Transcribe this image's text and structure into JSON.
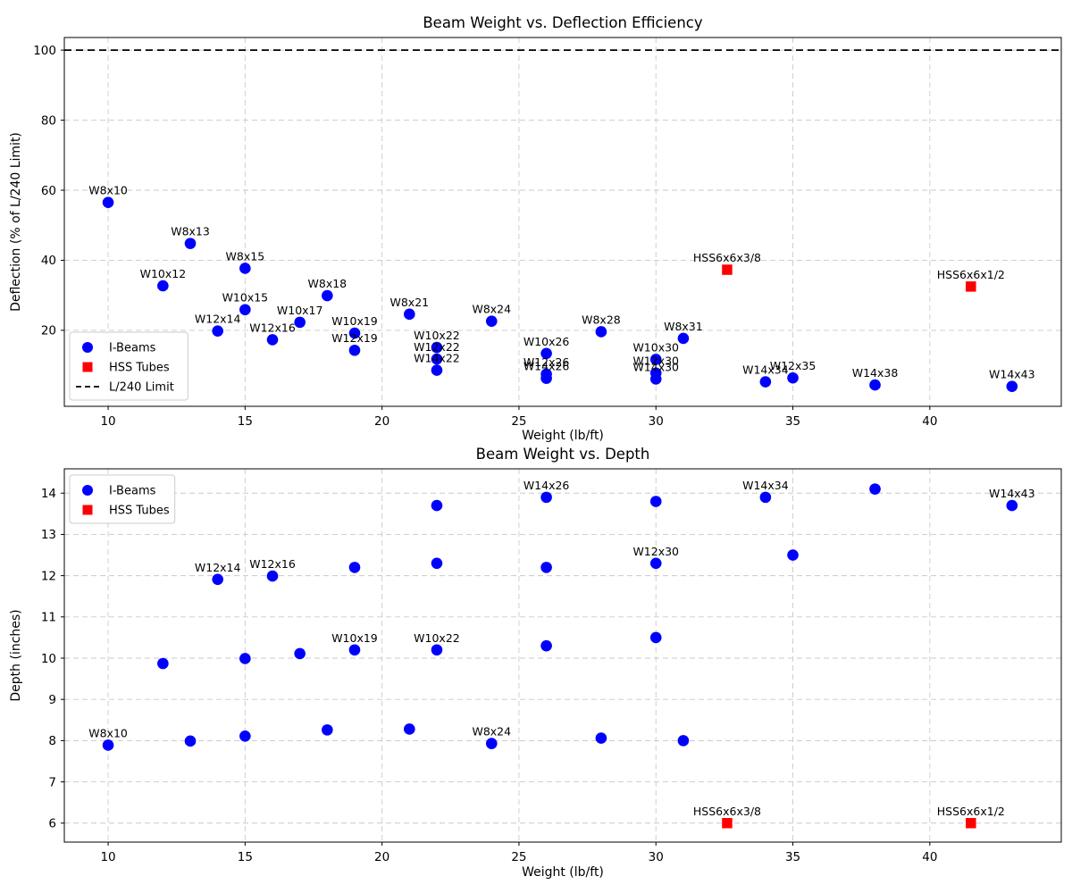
{
  "chart_data": [
    {
      "type": "scatter",
      "title": "Beam Weight vs. Deflection Efficiency",
      "xlabel": "Weight (lb/ft)",
      "ylabel": "Deflection (% of L/240 Limit)",
      "xlim": [
        8.4,
        44.8
      ],
      "ylim": [
        -1.7,
        103.6
      ],
      "xticks": [
        10,
        15,
        20,
        25,
        30,
        35,
        40
      ],
      "yticks": [
        20,
        40,
        60,
        80,
        100
      ],
      "grid": true,
      "hline": {
        "y": 100,
        "label": "L/240 Limit",
        "color": "#000000"
      },
      "legend": {
        "position": "lower-left",
        "items": [
          {
            "label": "I-Beams",
            "marker": "circle",
            "color": "#0000ff"
          },
          {
            "label": "HSS Tubes",
            "marker": "square",
            "color": "#ff0000"
          },
          {
            "label": "L/240 Limit",
            "marker": "dashed-line",
            "color": "#000000"
          }
        ]
      },
      "series": [
        {
          "name": "I-Beams",
          "marker": "circle",
          "color": "#0000ff",
          "points": [
            {
              "label": "W8x10",
              "x": 10,
              "y": 56.5,
              "show_label": true
            },
            {
              "label": "W10x12",
              "x": 12,
              "y": 32.7,
              "show_label": true
            },
            {
              "label": "W8x13",
              "x": 13,
              "y": 44.8,
              "show_label": true
            },
            {
              "label": "W12x14",
              "x": 14,
              "y": 19.8,
              "show_label": true
            },
            {
              "label": "W8x15",
              "x": 15,
              "y": 37.7,
              "show_label": true
            },
            {
              "label": "W10x15",
              "x": 15,
              "y": 25.9,
              "show_label": true
            },
            {
              "label": "W12x16",
              "x": 16,
              "y": 17.3,
              "show_label": true
            },
            {
              "label": "W10x17",
              "x": 17,
              "y": 22.3,
              "show_label": true
            },
            {
              "label": "W8x18",
              "x": 18,
              "y": 29.9,
              "show_label": true
            },
            {
              "label": "W10x19",
              "x": 19,
              "y": 19.2,
              "show_label": true
            },
            {
              "label": "W12x19",
              "x": 19,
              "y": 14.3,
              "show_label": true
            },
            {
              "label": "W8x21",
              "x": 21,
              "y": 24.6,
              "show_label": true
            },
            {
              "label": "W10x22",
              "x": 22,
              "y": 15.1,
              "show_label": true
            },
            {
              "label": "W12x22",
              "x": 22,
              "y": 11.8,
              "show_label": true
            },
            {
              "label": "W14x22",
              "x": 22,
              "y": 8.6,
              "show_label": true
            },
            {
              "label": "W8x24",
              "x": 24,
              "y": 22.6,
              "show_label": true
            },
            {
              "label": "W10x26",
              "x": 26,
              "y": 13.4,
              "show_label": true
            },
            {
              "label": "W12x26",
              "x": 26,
              "y": 7.5,
              "show_label": true
            },
            {
              "label": "W14x26",
              "x": 26,
              "y": 6.3,
              "show_label": true
            },
            {
              "label": "W8x28",
              "x": 28,
              "y": 19.6,
              "show_label": true
            },
            {
              "label": "W10x30",
              "x": 30,
              "y": 11.7,
              "show_label": true
            },
            {
              "label": "W12x30",
              "x": 30,
              "y": 7.8,
              "show_label": true
            },
            {
              "label": "W14x30",
              "x": 30,
              "y": 6.1,
              "show_label": true
            },
            {
              "label": "W8x31",
              "x": 31,
              "y": 17.7,
              "show_label": true
            },
            {
              "label": "W14x34",
              "x": 34,
              "y": 5.3,
              "show_label": true
            },
            {
              "label": "W12x35",
              "x": 35,
              "y": 6.4,
              "show_label": true
            },
            {
              "label": "W14x38",
              "x": 38,
              "y": 4.4,
              "show_label": true
            },
            {
              "label": "W14x43",
              "x": 43,
              "y": 4.0,
              "show_label": true
            }
          ]
        },
        {
          "name": "HSS Tubes",
          "marker": "square",
          "color": "#ff0000",
          "points": [
            {
              "label": "HSS6x6x3/8",
              "x": 32.6,
              "y": 37.3,
              "show_label": true
            },
            {
              "label": "HSS6x6x1/2",
              "x": 41.5,
              "y": 32.5,
              "show_label": true
            }
          ]
        }
      ]
    },
    {
      "type": "scatter",
      "title": "Beam Weight vs. Depth",
      "xlabel": "Weight (lb/ft)",
      "ylabel": "Depth (inches)",
      "xlim": [
        8.4,
        44.8
      ],
      "ylim": [
        5.54,
        14.59
      ],
      "xticks": [
        10,
        15,
        20,
        25,
        30,
        35,
        40
      ],
      "yticks": [
        6,
        7,
        8,
        9,
        10,
        11,
        12,
        13,
        14
      ],
      "grid": true,
      "legend": {
        "position": "upper-left",
        "items": [
          {
            "label": "I-Beams",
            "marker": "circle",
            "color": "#0000ff"
          },
          {
            "label": "HSS Tubes",
            "marker": "square",
            "color": "#ff0000"
          }
        ]
      },
      "series": [
        {
          "name": "I-Beams",
          "marker": "circle",
          "color": "#0000ff",
          "points": [
            {
              "label": "W8x10",
              "x": 10,
              "y": 7.89,
              "show_label": true
            },
            {
              "label": "W10x12",
              "x": 12,
              "y": 9.87,
              "show_label": false
            },
            {
              "label": "W8x13",
              "x": 13,
              "y": 7.99,
              "show_label": false
            },
            {
              "label": "W12x14",
              "x": 14,
              "y": 11.91,
              "show_label": true
            },
            {
              "label": "W8x15",
              "x": 15,
              "y": 8.11,
              "show_label": false
            },
            {
              "label": "W10x15",
              "x": 15,
              "y": 9.99,
              "show_label": false
            },
            {
              "label": "W12x16",
              "x": 16,
              "y": 11.99,
              "show_label": true
            },
            {
              "label": "W10x17",
              "x": 17,
              "y": 10.11,
              "show_label": false
            },
            {
              "label": "W8x18",
              "x": 18,
              "y": 8.26,
              "show_label": false
            },
            {
              "label": "W10x19",
              "x": 19,
              "y": 10.2,
              "show_label": true
            },
            {
              "label": "W12x19",
              "x": 19,
              "y": 12.2,
              "show_label": false
            },
            {
              "label": "W8x21",
              "x": 21,
              "y": 8.28,
              "show_label": false
            },
            {
              "label": "W10x22",
              "x": 22,
              "y": 10.2,
              "show_label": true
            },
            {
              "label": "W12x22",
              "x": 22,
              "y": 12.3,
              "show_label": false
            },
            {
              "label": "W14x22",
              "x": 22,
              "y": 13.7,
              "show_label": false
            },
            {
              "label": "W8x24",
              "x": 24,
              "y": 7.93,
              "show_label": true
            },
            {
              "label": "W10x26",
              "x": 26,
              "y": 10.3,
              "show_label": false
            },
            {
              "label": "W12x26",
              "x": 26,
              "y": 12.2,
              "show_label": false
            },
            {
              "label": "W14x26",
              "x": 26,
              "y": 13.9,
              "show_label": true
            },
            {
              "label": "W8x28",
              "x": 28,
              "y": 8.06,
              "show_label": false
            },
            {
              "label": "W10x30",
              "x": 30,
              "y": 10.5,
              "show_label": false
            },
            {
              "label": "W12x30",
              "x": 30,
              "y": 12.3,
              "show_label": true
            },
            {
              "label": "W14x30",
              "x": 30,
              "y": 13.8,
              "show_label": false
            },
            {
              "label": "W8x31",
              "x": 31,
              "y": 8.0,
              "show_label": false
            },
            {
              "label": "W14x34",
              "x": 34,
              "y": 13.9,
              "show_label": true
            },
            {
              "label": "W12x35",
              "x": 35,
              "y": 12.5,
              "show_label": false
            },
            {
              "label": "W14x38",
              "x": 38,
              "y": 14.1,
              "show_label": false
            },
            {
              "label": "W14x43",
              "x": 43,
              "y": 13.7,
              "show_label": true
            }
          ]
        },
        {
          "name": "HSS Tubes",
          "marker": "square",
          "color": "#ff0000",
          "points": [
            {
              "label": "HSS6x6x3/8",
              "x": 32.6,
              "y": 6.0,
              "show_label": true
            },
            {
              "label": "HSS6x6x1/2",
              "x": 41.5,
              "y": 6.0,
              "show_label": true
            }
          ]
        }
      ]
    }
  ],
  "colors": {
    "ibeam": "#0000ff",
    "hss": "#ff0000",
    "limit_line": "#000000",
    "grid": "#c9c9c9",
    "background": "#ffffff"
  }
}
